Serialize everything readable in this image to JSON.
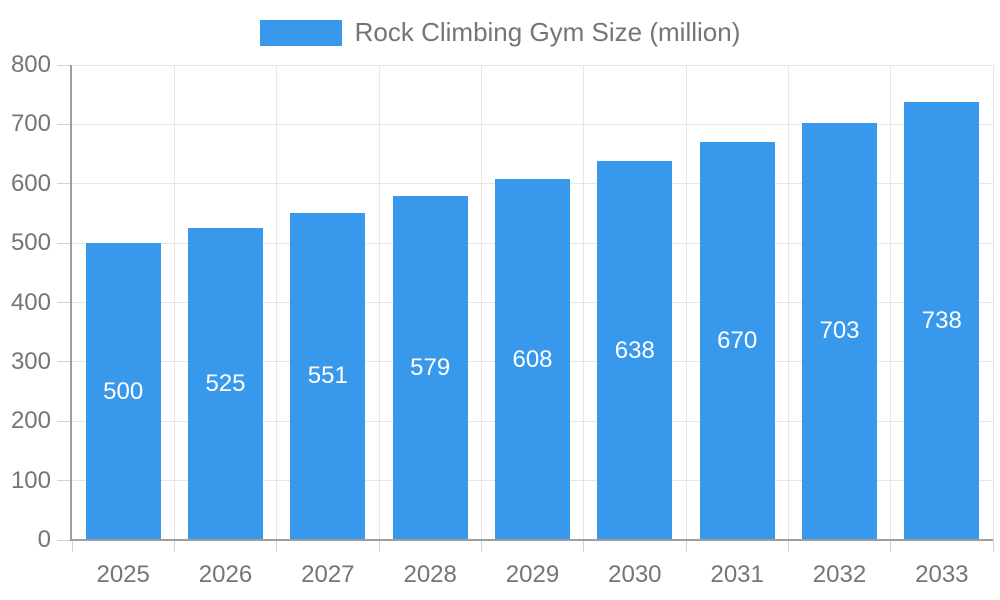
{
  "legend": {
    "label": "Rock Climbing Gym Size (million)"
  },
  "chart_data": {
    "type": "bar",
    "title": "Rock Climbing Gym Size (million)",
    "categories": [
      "2025",
      "2026",
      "2027",
      "2028",
      "2029",
      "2030",
      "2031",
      "2032",
      "2033"
    ],
    "values": [
      500,
      525,
      551,
      579,
      608,
      638,
      670,
      703,
      738
    ],
    "xlabel": "",
    "ylabel": "",
    "ylim": [
      0,
      800
    ],
    "ytick_step": 100,
    "yticks": [
      0,
      100,
      200,
      300,
      400,
      500,
      600,
      700,
      800
    ],
    "grid": true,
    "legend_position": "top",
    "bar_labels_inside": true,
    "colors": {
      "bar": "#3899ec",
      "bar_value_text": "#ffffff",
      "axis_text": "#757575",
      "legend_text": "#757575",
      "gridline": "#e6e6e6",
      "tick_mark": "#d4d4d4",
      "axis_line": "#9e9e9e",
      "background": "#ffffff"
    }
  }
}
